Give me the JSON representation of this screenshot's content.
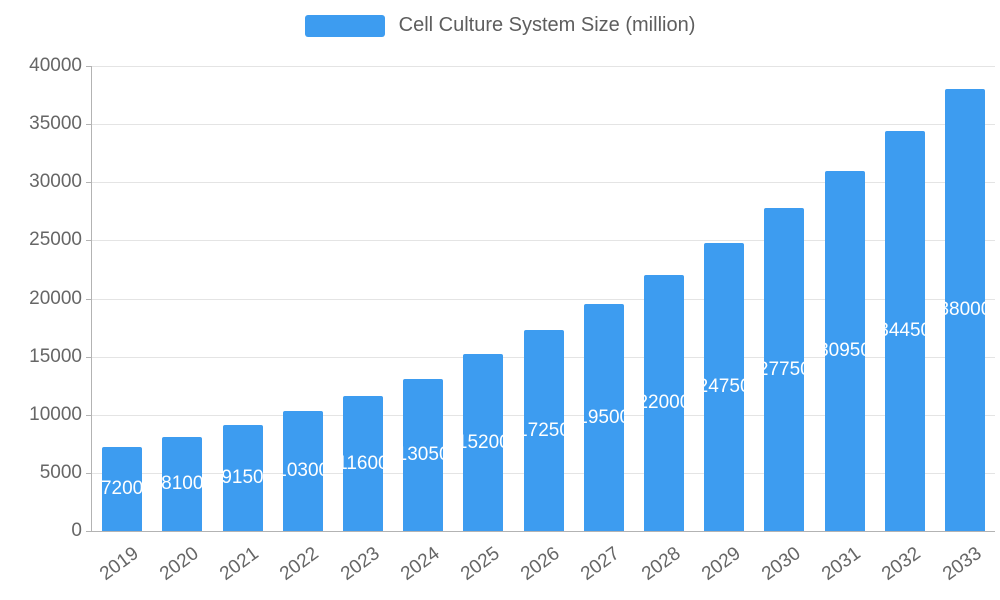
{
  "legend": {
    "position": "top"
  },
  "colors": {
    "bar": "#3d9cf0",
    "grid": "#e4e4e4",
    "axis": "#b3b3b3",
    "axis_text": "#666666",
    "legend_text": "#5e5e5e",
    "value_label": "#ffffff",
    "background": "#ffffff"
  },
  "chart_data": {
    "type": "bar",
    "title": "Cell Culture System Size (million)",
    "categories": [
      "2019",
      "2020",
      "2021",
      "2022",
      "2023",
      "2024",
      "2025",
      "2026",
      "2027",
      "2028",
      "2029",
      "2030",
      "2031",
      "2032",
      "2033"
    ],
    "values": [
      7200,
      8100,
      9150,
      10300,
      11600,
      13050,
      15200,
      17250,
      19500,
      22000,
      24750,
      27750,
      30950,
      34450,
      38000
    ],
    "series_name": "Cell Culture System Size (million)",
    "xlabel": "",
    "ylabel": "",
    "ylim": [
      0,
      40000
    ],
    "yticks": [
      0,
      5000,
      10000,
      15000,
      20000,
      25000,
      30000,
      35000,
      40000
    ],
    "grid": true,
    "legend_position": "top",
    "value_labels": "inside-center"
  }
}
